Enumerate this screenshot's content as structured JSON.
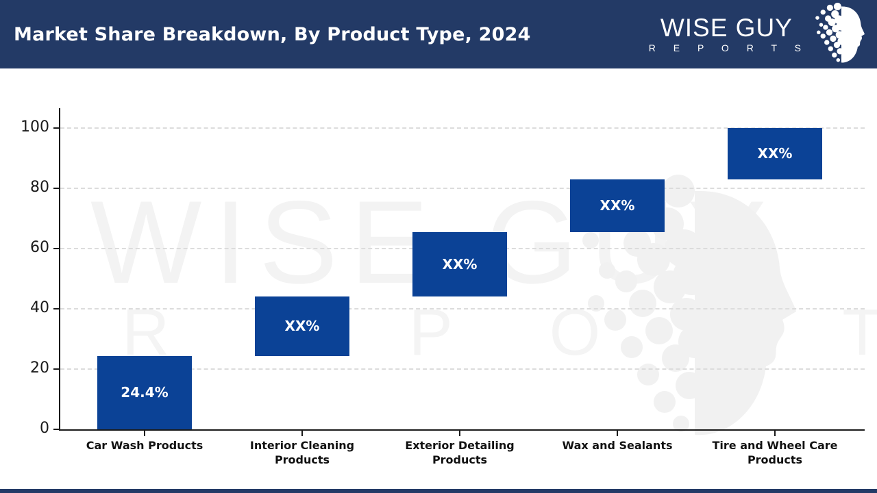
{
  "header": {
    "title": "Market Share Breakdown, By Product Type, 2024",
    "logo": {
      "wise_guy": "WISE GUY",
      "reports": "R E P O R T S"
    }
  },
  "watermark": {
    "wise_guy": "WISE GUY",
    "reports": "R E P O R T S"
  },
  "chart_data": {
    "type": "bar",
    "subtype": "waterfall",
    "title": "Market Share Breakdown, By Product Type, 2024",
    "categories": [
      "Car Wash Products",
      "Interior Cleaning Products",
      "Exterior Detailing Products",
      "Wax and Sealants",
      "Tire and Wheel Care Products"
    ],
    "segments": [
      {
        "category": "Car Wash Products",
        "label": "24.4%",
        "start": 0,
        "end": 24.4
      },
      {
        "category": "Interior Cleaning Products",
        "label": "XX%",
        "start": 24.4,
        "end": 44.1
      },
      {
        "category": "Exterior Detailing Products",
        "label": "XX%",
        "start": 44.1,
        "end": 65.5
      },
      {
        "category": "Wax and Sealants",
        "label": "XX%",
        "start": 65.5,
        "end": 83.0
      },
      {
        "category": "Tire and Wheel Care Products",
        "label": "XX%",
        "start": 83.0,
        "end": 100.0
      }
    ],
    "xlabel": "",
    "ylabel": "",
    "yticks": [
      0,
      20,
      40,
      60,
      80,
      100
    ],
    "ylim": [
      0,
      106.6
    ],
    "grid": "horizontal-dashed",
    "legend": "none",
    "colors": {
      "bar": "#0b4296",
      "bar_label": "#ffffff",
      "gridline": "#dcdcdc",
      "axis": "#1a1a1a",
      "header_bg": "#233a66",
      "watermark": "#f3f3f3"
    }
  }
}
